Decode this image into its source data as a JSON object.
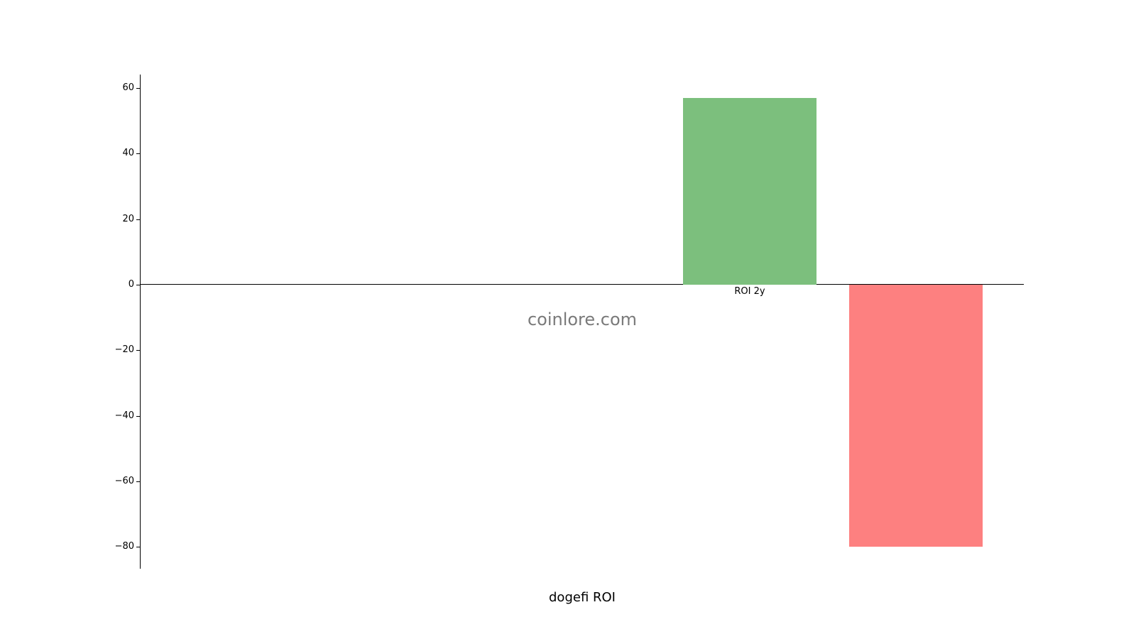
{
  "page": {
    "background": "#ffffff"
  },
  "watermark": {
    "text": "coinlore.com",
    "color": "#7a7a7a"
  },
  "chart_data": {
    "type": "bar",
    "title": "",
    "xlabel": "dogefi ROI",
    "ylabel": "",
    "categories": [
      "ROI 2y",
      ""
    ],
    "values": [
      57,
      -80
    ],
    "bar_colors": [
      "#7cbf7d",
      "#fd8080"
    ],
    "yticks": [
      60,
      40,
      20,
      0,
      -20,
      -40,
      -60,
      -80
    ],
    "ylim": [
      -86.9,
      63.9
    ],
    "grid": false,
    "legend": false,
    "axis_color": "#000000",
    "zero_baseline": 0
  }
}
